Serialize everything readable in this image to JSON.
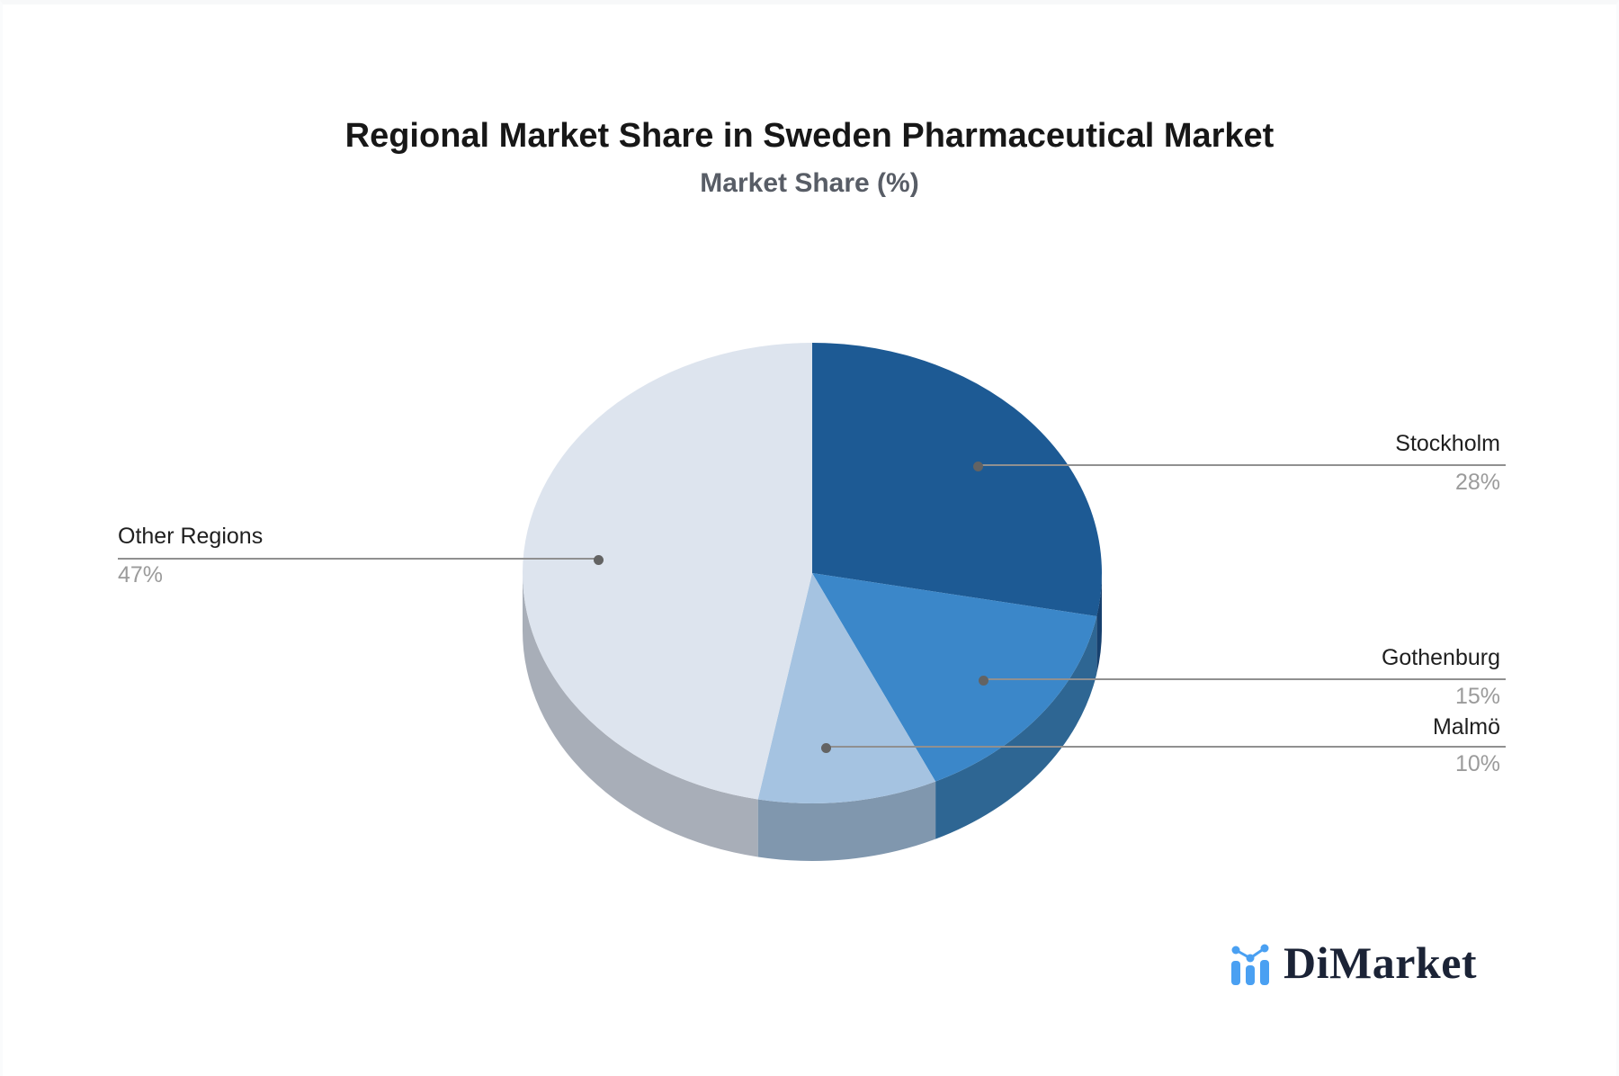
{
  "header": {
    "title": "Regional Market Share in Sweden Pharmaceutical Market",
    "subtitle": "Market Share (%)"
  },
  "chart_data": {
    "type": "pie",
    "three_d": true,
    "title": "Regional Market Share in Sweden Pharmaceutical Market",
    "subtitle": "Market Share (%)",
    "unit": "%",
    "start_angle_deg": 0,
    "direction": "clockwise",
    "legend": "none",
    "label_style": "callout-leader-lines",
    "slices": [
      {
        "label": "Stockholm",
        "value": 28,
        "display": "28%",
        "color": "#1d5a94",
        "side_color": "#16406e"
      },
      {
        "label": "Gothenburg",
        "value": 15,
        "display": "15%",
        "color": "#3b87c9",
        "side_color": "#2e6693"
      },
      {
        "label": "Malmö",
        "value": 10,
        "display": "10%",
        "color": "#a5c3e1",
        "side_color": "#8097ae"
      },
      {
        "label": "Other Regions",
        "value": 47,
        "display": "47%",
        "color": "#dde4ee",
        "side_color": "#a8aeb8"
      }
    ],
    "leader_line_color": "#909090",
    "leader_dot_color": "#636363"
  },
  "branding": {
    "logo_text": "DiMarket",
    "logo_icon": "bar-line-chart-icon",
    "icon_color": "#4aa0f2",
    "text_color": "#1b2336"
  }
}
